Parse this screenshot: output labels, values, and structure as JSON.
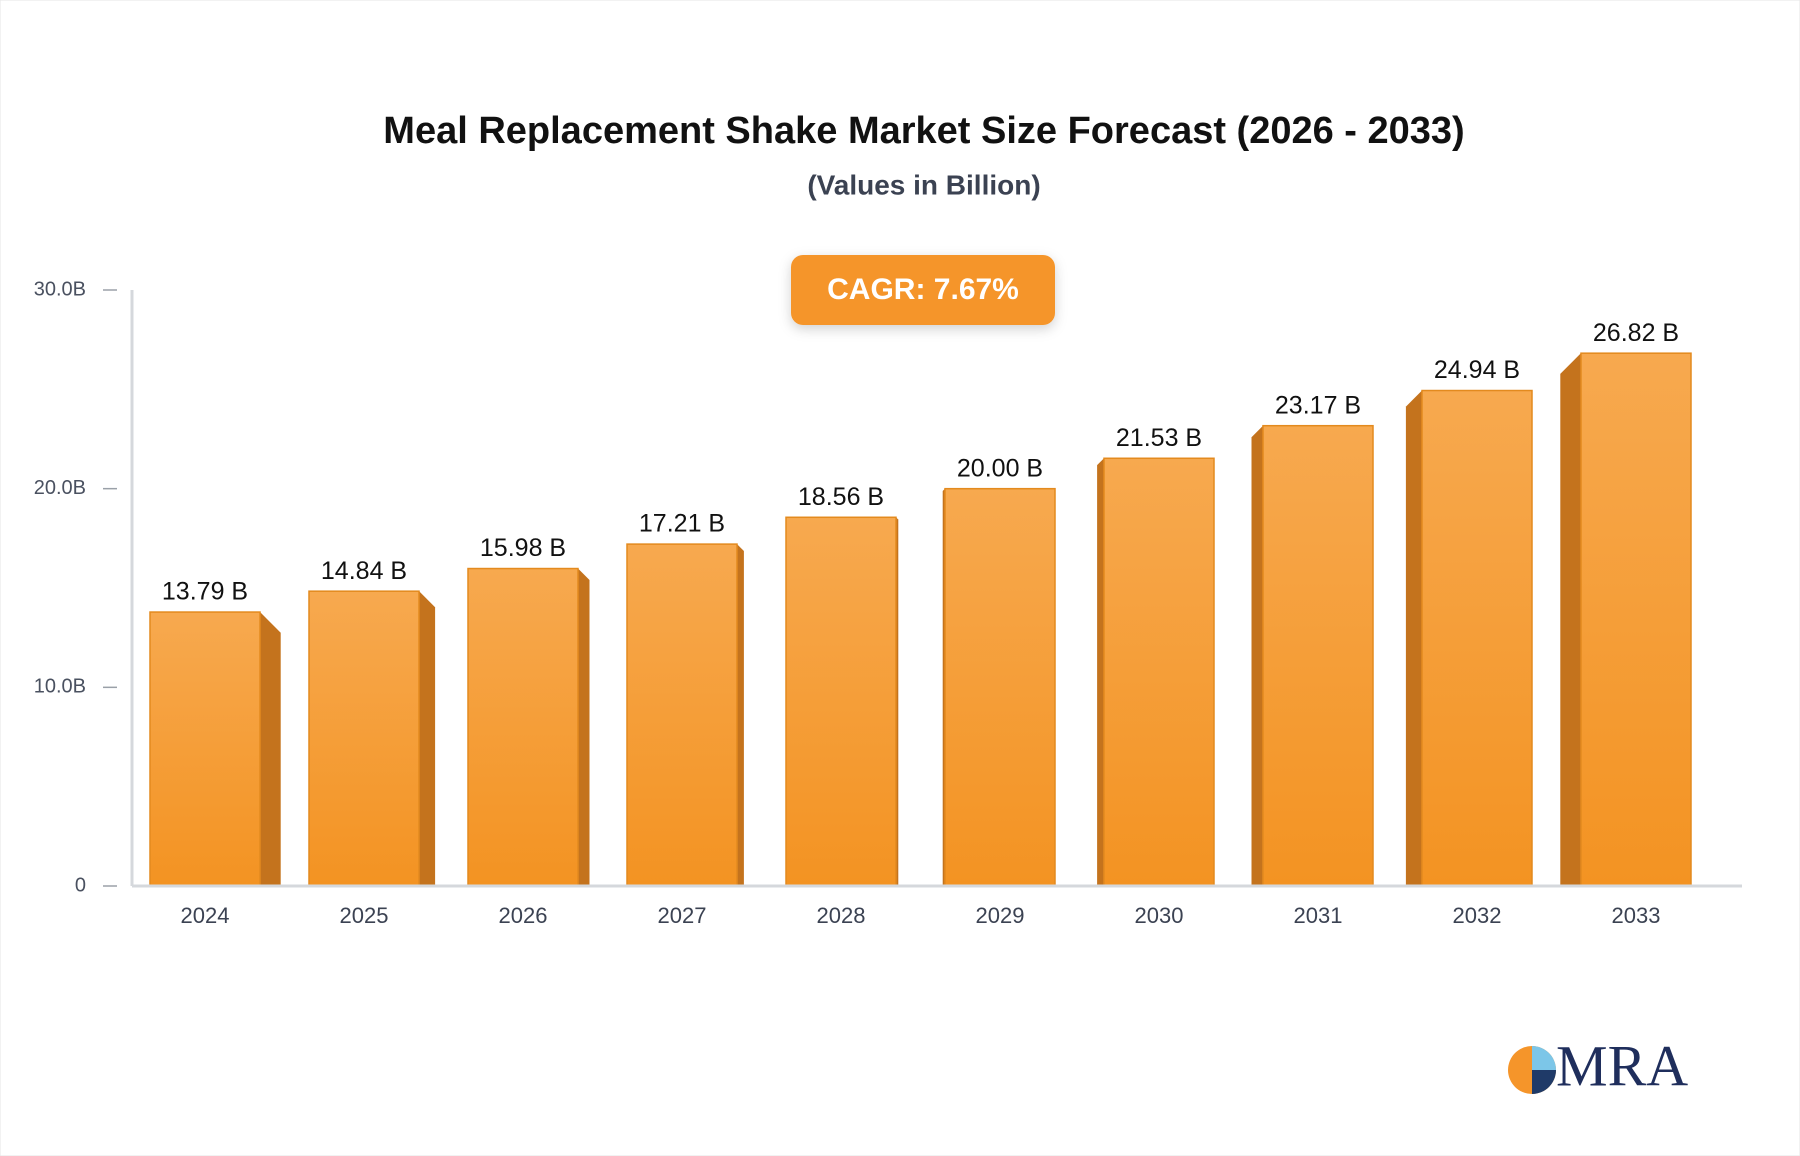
{
  "chart_data": {
    "type": "bar",
    "title": "Meal Replacement Shake Market Size Forecast (2026 - 2033)",
    "subtitle": "(Values in Billion)",
    "annotation": "CAGR: 7.67%",
    "categories": [
      "2024",
      "2025",
      "2026",
      "2027",
      "2028",
      "2029",
      "2030",
      "2031",
      "2032",
      "2033"
    ],
    "values": [
      13.79,
      14.84,
      15.98,
      17.21,
      18.56,
      20.0,
      21.53,
      23.17,
      24.94,
      26.82
    ],
    "value_labels": [
      "13.79 B",
      "14.84 B",
      "15.98 B",
      "17.21 B",
      "18.56 B",
      "20.00 B",
      "21.53 B",
      "23.17 B",
      "24.94 B",
      "26.82 B"
    ],
    "color": "#f59a2e",
    "ylim": [
      0,
      30
    ],
    "yticks": [
      0,
      {
        "value": 10,
        "label": "10.0B"
      },
      {
        "value": 20,
        "label": "20.0B"
      },
      {
        "value": 30,
        "label": "30.0B"
      }
    ],
    "grid": false
  },
  "logo": "MRA"
}
